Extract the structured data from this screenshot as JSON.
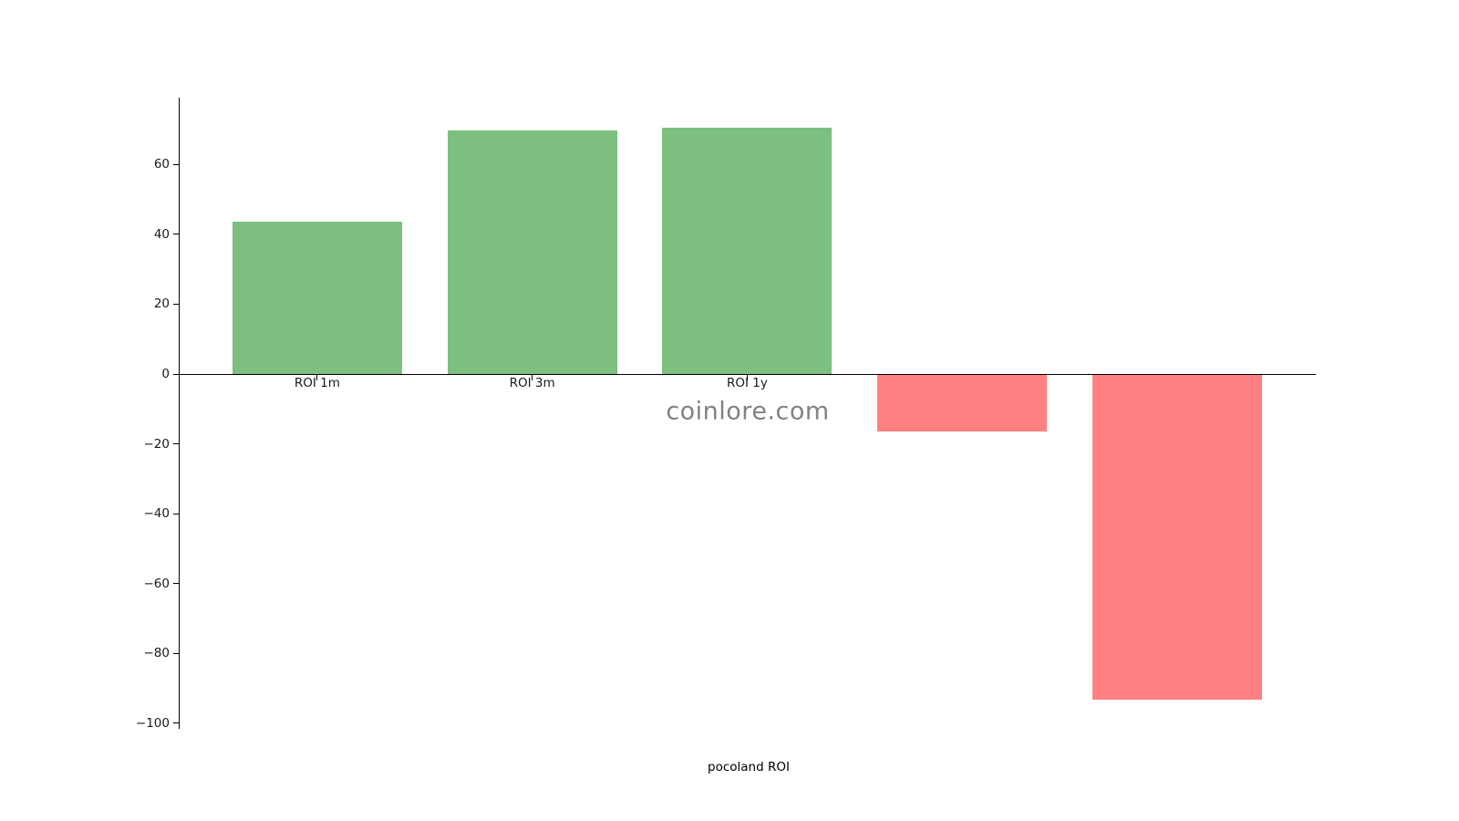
{
  "page": {
    "background": "#ffffff"
  },
  "watermark": {
    "text": "coinlore.com",
    "color": "#7f8287"
  },
  "chart_data": {
    "type": "bar",
    "title": "",
    "xlabel": "pocoland ROI",
    "ylabel": "",
    "categories": [
      "ROI 1m",
      "ROI 3m",
      "ROI 1y",
      "",
      ""
    ],
    "values": [
      43.5,
      69.7,
      70.5,
      -16.5,
      -93.2
    ],
    "bar_colors": [
      "#7dbf7f",
      "#7dbf7f",
      "#7dbf7f",
      "#ff8080",
      "#ff8080"
    ],
    "positive_color": "#7dbf7f",
    "negative_color": "#ff8080",
    "ylim": [
      -101.6,
      79.2
    ],
    "yticks": [
      60,
      40,
      20,
      0,
      -20,
      -40,
      -60,
      -80,
      -100
    ],
    "ytick_labels": [
      "60",
      "40",
      "20",
      "0",
      "−20",
      "−40",
      "−60",
      "−80",
      "−100"
    ],
    "grid": false,
    "legend": null,
    "axis_color": "#000000",
    "tick_label_color": "#1a1a1a"
  }
}
